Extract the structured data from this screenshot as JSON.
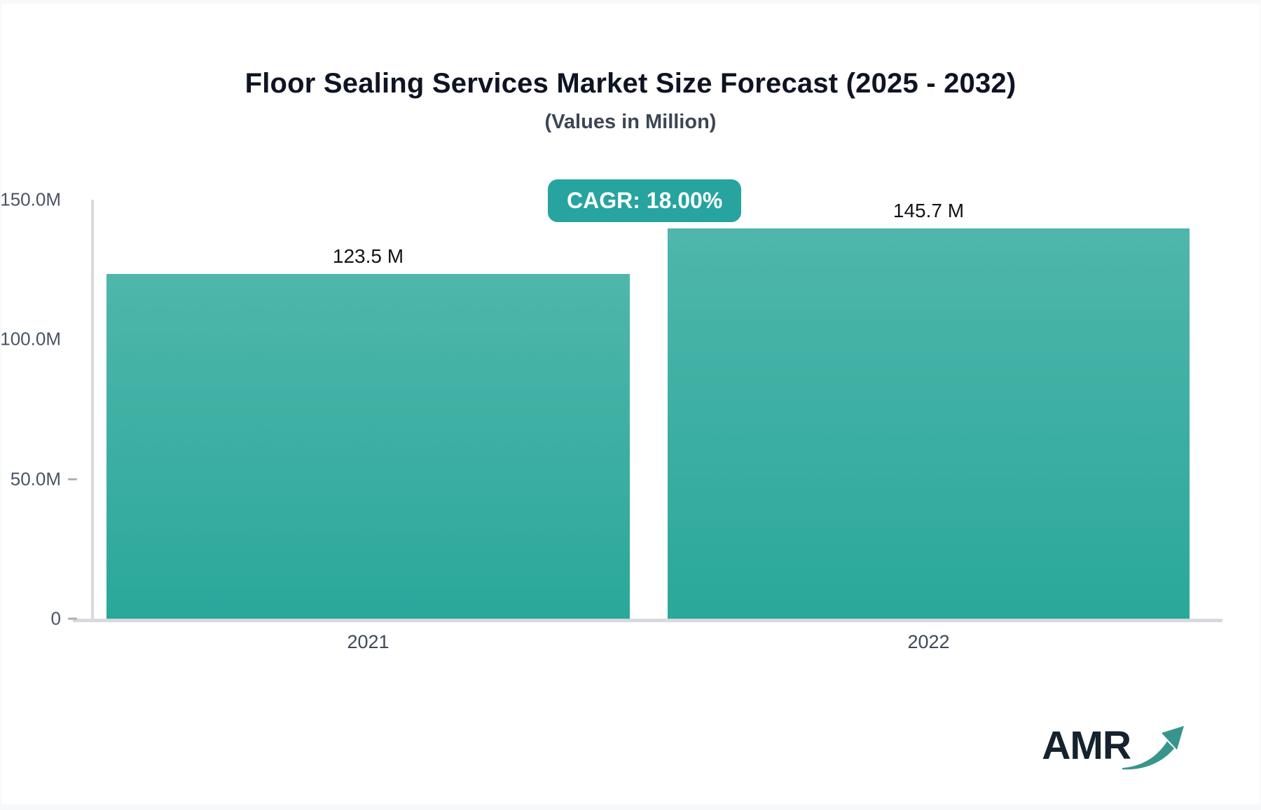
{
  "header": {
    "title": "Floor Sealing Services Market Size Forecast (2025 - 2032)",
    "subtitle": "(Values in Million)"
  },
  "badge": {
    "label": "CAGR: 18.00%"
  },
  "chart_data": {
    "type": "bar",
    "title": "Floor Sealing Services Market Size Forecast (2025 - 2032)",
    "subtitle": "(Values in Million)",
    "categories": [
      "2021",
      "2022"
    ],
    "values": [
      123.5,
      145.7
    ],
    "value_labels": [
      "123.5 M",
      "145.7 M"
    ],
    "unit": "Million",
    "xlabel": "",
    "ylabel": "",
    "ylim": [
      0,
      150
    ],
    "yticks": [
      {
        "label": "150.0M",
        "value": 150,
        "dash": false
      },
      {
        "label": "100.0M",
        "value": 100,
        "dash": false
      },
      {
        "label": "50.0M",
        "value": 50,
        "dash": true
      },
      {
        "label": "0",
        "value": 0,
        "dash": true
      }
    ],
    "grid": false,
    "legend": false,
    "cagr": "CAGR: 18.00%",
    "colors": {
      "bar_top": "#4fb6ab",
      "bar_bottom": "#2aa89a",
      "badge": "#27a3a0",
      "axis": "#d8d9de",
      "arrow": "#37958c"
    }
  },
  "branding": {
    "logo_text": "AMR"
  }
}
